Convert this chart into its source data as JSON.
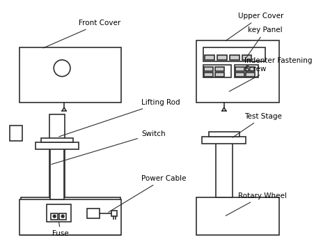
{
  "background_color": "#ffffff",
  "line_color": "#2d2d2d",
  "line_width": 1.2,
  "font_size": 7.5,
  "labels": {
    "front_cover": "Front Cover",
    "lifting_rod": "Lifting Rod",
    "switch": "Switch",
    "power_cable": "Power Cable",
    "fuse": "Fuse",
    "upper_cover": "Upper Cover",
    "key_panel": "key Panel",
    "indenter_fastening_screw": "Indenter Fastening\nScrew",
    "test_stage": "Test Stage",
    "rotary_wheel": "Rotary Wheel"
  }
}
